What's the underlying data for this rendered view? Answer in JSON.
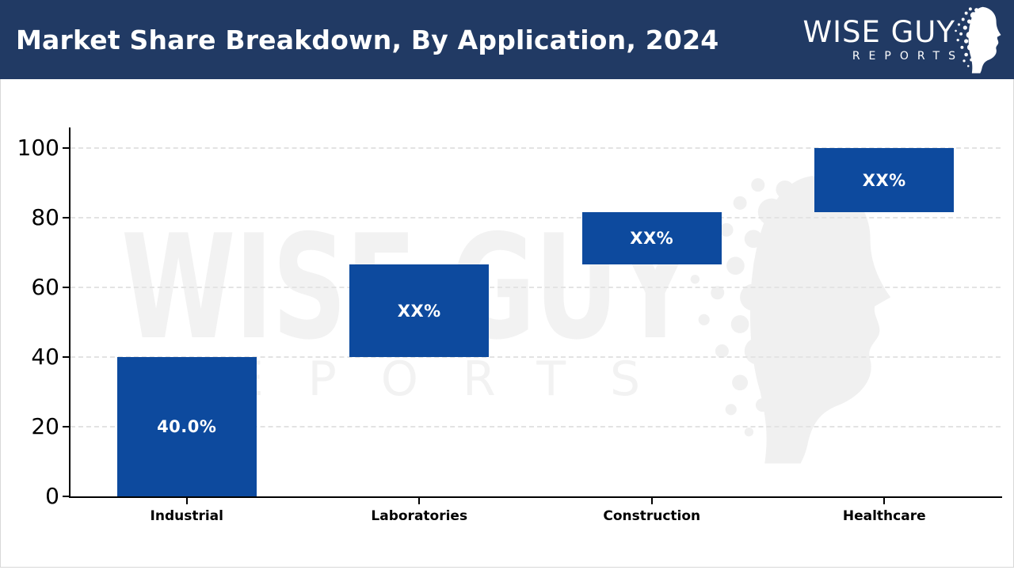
{
  "header": {
    "title": "Market Share Breakdown, By Application, 2024",
    "logo": {
      "line1": "WISE GUY",
      "line2": "REPORTS"
    }
  },
  "watermark": {
    "line1": "WISE GUY",
    "line2": "REPORTS"
  },
  "colors": {
    "header_bg": "#213a64",
    "header_text": "#ffffff",
    "bar": "#0d4a9e",
    "bar_label": "#ffffff",
    "gridline": "#e3e3e3",
    "axis": "#000000",
    "watermark": "#f2f2f2",
    "card_border": "#d8d8d8"
  },
  "chart_data": {
    "type": "bar",
    "subtype": "waterfall",
    "title": "Market Share Breakdown, By Application, 2024",
    "categories": [
      "Industrial",
      "Laboratories",
      "Construction",
      "Healthcare"
    ],
    "segments": [
      {
        "category": "Industrial",
        "start": 0,
        "end": 40,
        "label": "40.0%"
      },
      {
        "category": "Laboratories",
        "start": 40,
        "end": 66.5,
        "label": "XX%"
      },
      {
        "category": "Construction",
        "start": 66.5,
        "end": 81.5,
        "label": "XX%"
      },
      {
        "category": "Healthcare",
        "start": 81.5,
        "end": 100,
        "label": "XX%"
      }
    ],
    "ylabel": "",
    "xlabel": "",
    "yticks": [
      0,
      20,
      40,
      60,
      80,
      100
    ],
    "ylim": [
      0,
      106
    ],
    "grid": "dashed-horizontal",
    "legend": false
  }
}
